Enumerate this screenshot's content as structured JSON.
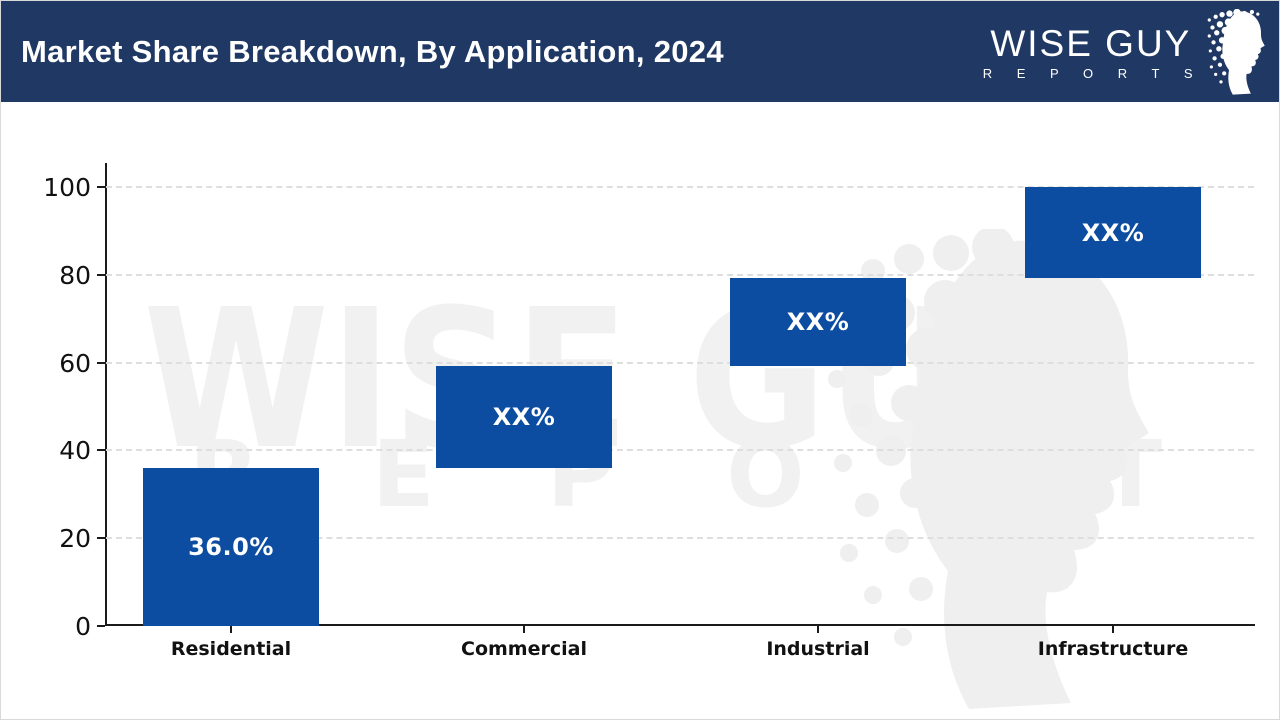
{
  "header": {
    "title": "Market Share Breakdown, By Application, 2024",
    "logo": {
      "wordmark": "WISE GUY",
      "wordmark_sub": "R E P O R T S"
    }
  },
  "watermark": {
    "wordmark": "WISE GUY",
    "wordmark_sub": "R E P O R T S"
  },
  "chart_data": {
    "type": "bar",
    "variant": "waterfall",
    "title": "Market Share Breakdown, By Application, 2024",
    "xlabel": "",
    "ylabel": "",
    "categories": [
      "Residential",
      "Commercial",
      "Industrial",
      "Infrastructure"
    ],
    "segments": [
      {
        "category": "Residential",
        "start": 0,
        "end": 36,
        "label": "36.0%"
      },
      {
        "category": "Commercial",
        "start": 36,
        "end": 59.3,
        "label": "XX%"
      },
      {
        "category": "Industrial",
        "start": 59.3,
        "end": 79.2,
        "label": "XX%"
      },
      {
        "category": "Infrastructure",
        "start": 79.2,
        "end": 100,
        "label": "XX%"
      }
    ],
    "ylim": [
      0,
      100
    ],
    "yticks": [
      0,
      20,
      40,
      60,
      80,
      100
    ],
    "grid": "horizontal-dashed",
    "legend": "none",
    "bar_color": "#0c4da2",
    "bar_label_color": "#ffffff"
  },
  "colors": {
    "header_bg": "#1f3864",
    "bar": "#0c4da2",
    "axis": "#1a1a1a",
    "gridline": "#dedede",
    "watermark": "#f1f1f1",
    "tick_label": "#111111"
  }
}
